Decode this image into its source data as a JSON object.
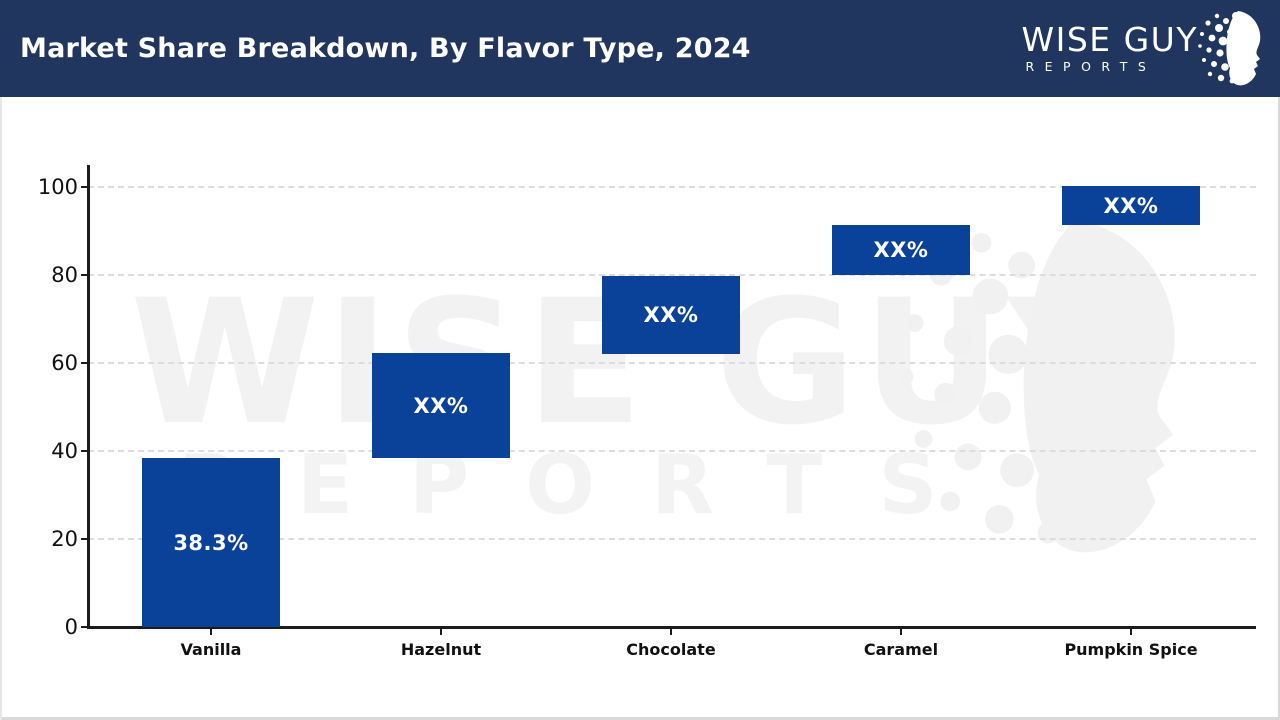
{
  "header": {
    "title": "Market Share Breakdown, By Flavor Type, 2024",
    "logo": {
      "line1": "WISE GUY",
      "line2": "REPORTS"
    },
    "bg_color": "#21365e"
  },
  "watermark": {
    "line1": "WISE GUY",
    "line2": "REPORTS"
  },
  "chart_data": {
    "type": "bar",
    "subtype": "waterfall",
    "title": "Market Share Breakdown, By Flavor Type, 2024",
    "xlabel": "",
    "ylabel": "",
    "ylim": [
      0,
      105
    ],
    "y_ticks": [
      0,
      20,
      40,
      60,
      80,
      100
    ],
    "grid": "horizontal-dashed",
    "legend": "none",
    "categories": [
      "Vanilla",
      "Hazelnut",
      "Chocolate",
      "Caramel",
      "Pumpkin Spice"
    ],
    "bars": [
      {
        "category": "Vanilla",
        "start": 0,
        "end": 38.3,
        "label": "38.3%"
      },
      {
        "category": "Hazelnut",
        "start": 38.3,
        "end": 62.3,
        "label": "XX%"
      },
      {
        "category": "Chocolate",
        "start": 62.0,
        "end": 79.8,
        "label": "XX%"
      },
      {
        "category": "Caramel",
        "start": 80.0,
        "end": 91.3,
        "label": "XX%"
      },
      {
        "category": "Pumpkin Spice",
        "start": 91.3,
        "end": 100.2,
        "label": "XX%"
      }
    ],
    "bar_color": "#0b4299",
    "label_color": "#ffffff",
    "axis_color": "#1c1c1c",
    "gridline_color": "#dddddd"
  }
}
